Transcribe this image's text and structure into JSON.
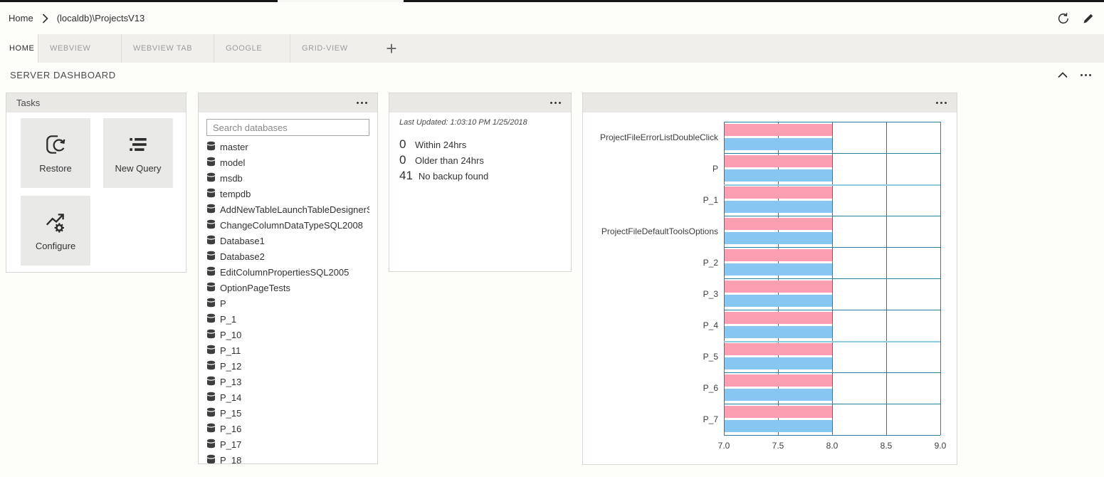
{
  "breadcrumb": {
    "home": "Home",
    "current": "(localdb)\\ProjectsV13"
  },
  "top_actions": {
    "refresh_icon": "refresh-icon",
    "edit_icon": "pencil-icon"
  },
  "tabs": {
    "items": [
      {
        "label": "HOME",
        "active": true
      },
      {
        "label": "WEBVIEW",
        "active": false
      },
      {
        "label": "WEBVIEW TAB",
        "active": false
      },
      {
        "label": "GOOGLE",
        "active": false
      },
      {
        "label": "GRID-VIEW",
        "active": false
      }
    ],
    "add_label": "+"
  },
  "dashboard": {
    "title": "SERVER DASHBOARD"
  },
  "tasks_panel": {
    "title": "Tasks",
    "buttons": [
      {
        "label": "Restore",
        "icon": "restore-icon"
      },
      {
        "label": "New Query",
        "icon": "new-query-icon"
      },
      {
        "label": "Configure",
        "icon": "configure-icon"
      }
    ]
  },
  "databases_panel": {
    "search_placeholder": "Search databases",
    "items": [
      "master",
      "model",
      "msdb",
      "tempdb",
      "AddNewTableLaunchTableDesignerS",
      "ChangeColumnDataTypeSQL2008",
      "Database1",
      "Database2",
      "EditColumnPropertiesSQL2005",
      "OptionPageTests",
      "P",
      "P_1",
      "P_10",
      "P_11",
      "P_12",
      "P_13",
      "P_14",
      "P_15",
      "P_16",
      "P_17",
      "P_18"
    ]
  },
  "backup_panel": {
    "last_updated": "Last Updated: 1:03:10 PM 1/25/2018",
    "stats": [
      {
        "value": "0",
        "label": "Within 24hrs"
      },
      {
        "value": "0",
        "label": "Older than 24hrs"
      },
      {
        "value": "41",
        "label": "No backup found"
      }
    ]
  },
  "chart_data": {
    "type": "bar",
    "orientation": "horizontal",
    "title": "",
    "categories": [
      "ProjectFileErrorListDoubleClick",
      "P",
      "P_1",
      "ProjectFileDefaultToolsOptions",
      "P_2",
      "P_3",
      "P_4",
      "P_5",
      "P_6",
      "P_7"
    ],
    "series": [
      {
        "name": "pink",
        "color": "#FC9FB3",
        "values": [
          8.0,
          8.0,
          8.0,
          8.0,
          8.0,
          8.0,
          8.0,
          8.0,
          8.0,
          8.0
        ]
      },
      {
        "name": "blue",
        "color": "#86C6F0",
        "values": [
          8.0,
          8.0,
          8.0,
          8.0,
          8.0,
          8.0,
          8.0,
          8.0,
          8.0,
          8.0
        ]
      }
    ],
    "xlim": [
      7.0,
      9.0
    ],
    "xticks": [
      "7.0",
      "7.5",
      "8.0",
      "8.5",
      "9.0"
    ],
    "grid": true,
    "grid_color": "#26809e",
    "light_gridline_rows": [
      2,
      7
    ],
    "legend": "none"
  },
  "colors": {
    "accent_grid": "#26809e",
    "bar_pink": "#FC9FB3",
    "bar_blue": "#86C6F0",
    "panel_header": "#eae8e4"
  }
}
